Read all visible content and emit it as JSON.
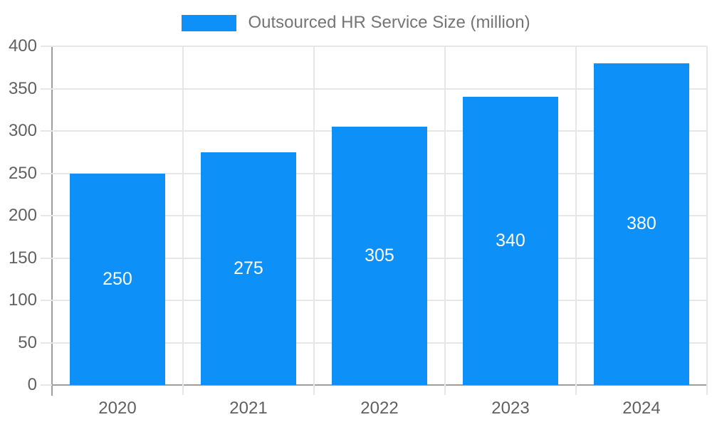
{
  "chart_data": {
    "type": "bar",
    "legend": "Outsourced HR Service Size (million)",
    "categories": [
      "2020",
      "2021",
      "2022",
      "2023",
      "2024"
    ],
    "series": [
      {
        "name": "Outsourced HR Service Size (million)",
        "values": [
          250,
          275,
          305,
          340,
          380
        ]
      }
    ],
    "value_labels": [
      "250",
      "275",
      "305",
      "340",
      "380"
    ],
    "ylim": [
      0,
      400
    ],
    "yticks": [
      0,
      50,
      100,
      150,
      200,
      250,
      300,
      350,
      400
    ],
    "grid": true,
    "legend_position": "top-center",
    "bar_color": "#0d90f7",
    "grid_color": "#e7e7e7",
    "axis_color": "#9e9e9e",
    "label_color": "#616161",
    "legend_text_color": "#757575",
    "value_label_color": "#ffffff"
  }
}
